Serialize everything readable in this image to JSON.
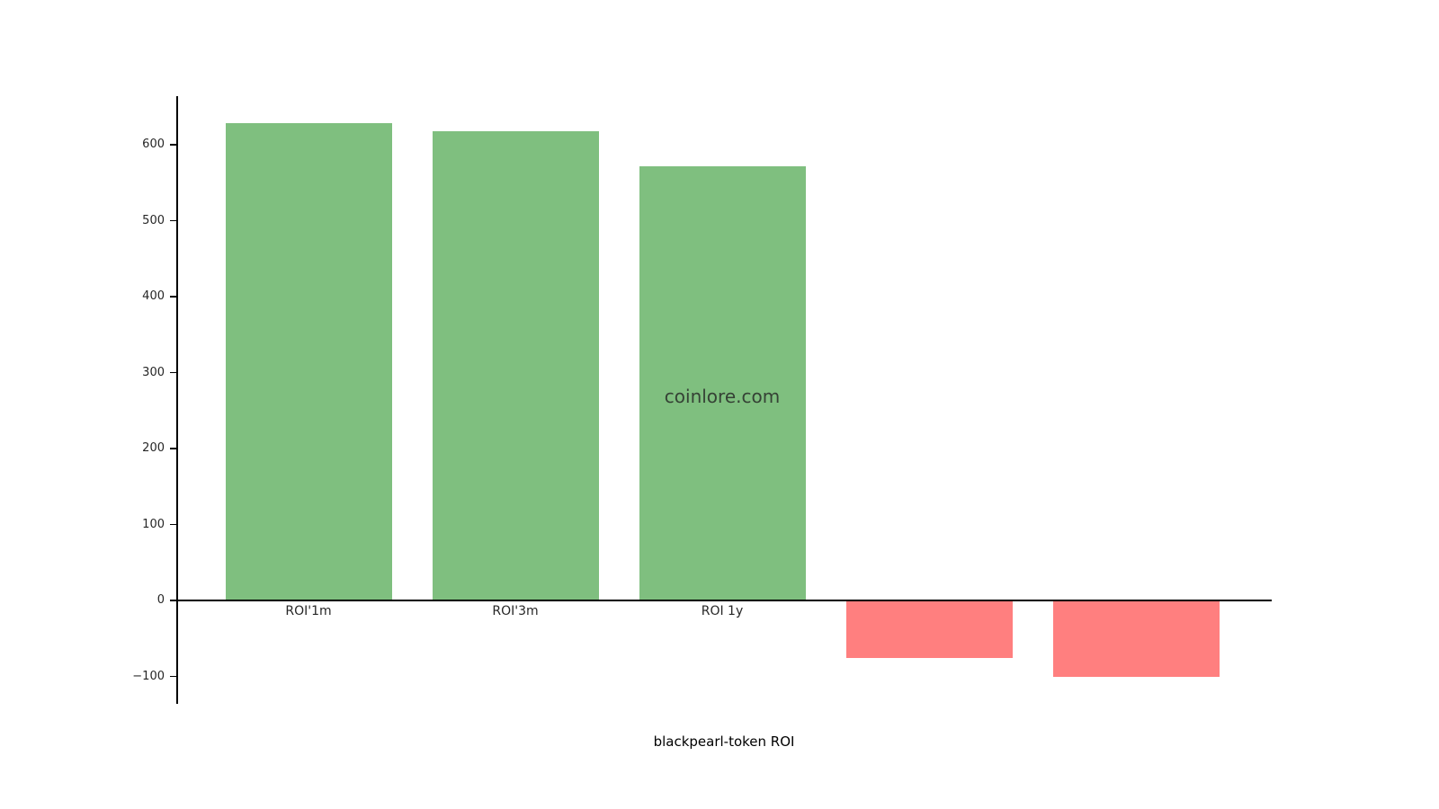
{
  "chart_data": {
    "type": "bar",
    "title": "blackpearl-token ROI",
    "watermark": "coinlore.com",
    "categories": [
      "ROI'1m",
      "ROI'3m",
      "ROI 1y",
      "",
      ""
    ],
    "values": [
      628,
      618,
      572,
      -76,
      -100
    ],
    "bar_colors": [
      "#7fbf7f",
      "#7fbf7f",
      "#7fbf7f",
      "#ff7f7f",
      "#ff7f7f"
    ],
    "positive_color": "#7fbf7f",
    "negative_color": "#ff7f7f",
    "y_ticks": [
      {
        "value": 600,
        "label": "600"
      },
      {
        "value": 500,
        "label": "500"
      },
      {
        "value": 400,
        "label": "400"
      },
      {
        "value": 300,
        "label": "300"
      },
      {
        "value": 200,
        "label": "200"
      },
      {
        "value": 100,
        "label": "100"
      },
      {
        "value": 0,
        "label": "0"
      },
      {
        "value": -100,
        "label": "−100"
      }
    ],
    "ylim": [
      -136,
      664
    ],
    "xlabel": "",
    "ylabel": "",
    "grid": false,
    "legend": "none",
    "axis_color": "#000000",
    "background_color": "#ffffff"
  }
}
